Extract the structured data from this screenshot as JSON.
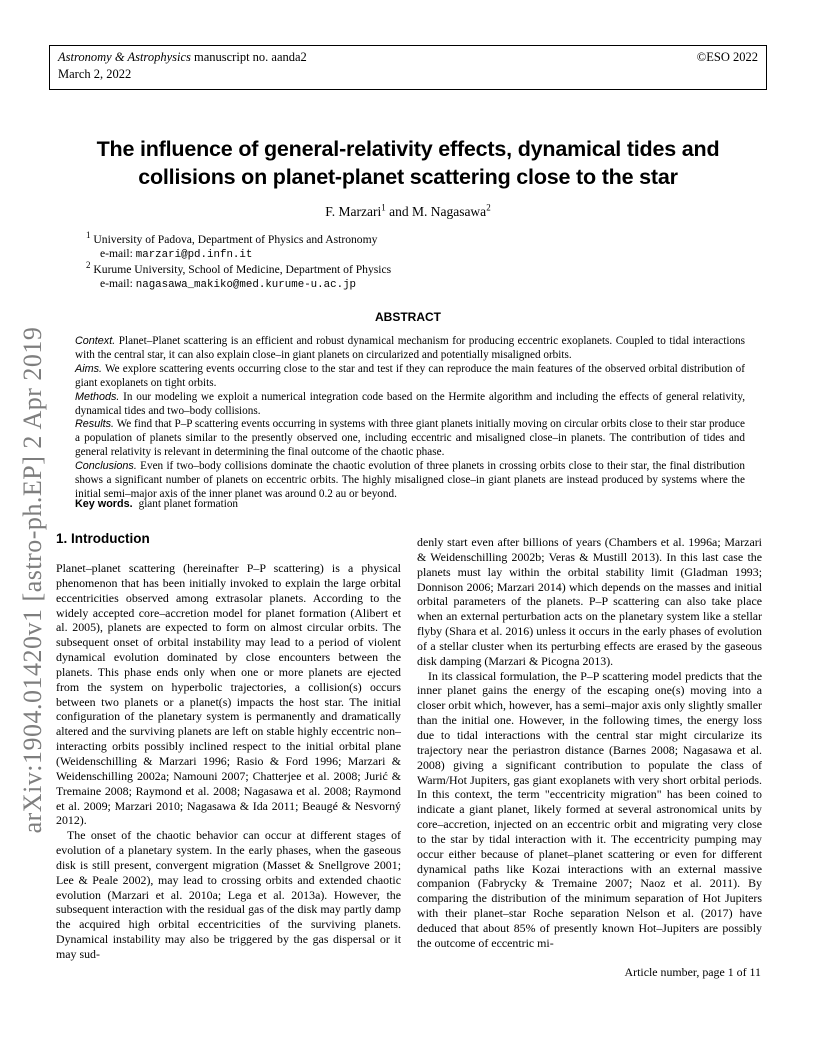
{
  "masthead": {
    "journal": "Astronomy & Astrophysics",
    "manuscript": " manuscript no. aanda2",
    "date": "March 2, 2022",
    "copyright": "©ESO 2022"
  },
  "arxiv_stamp": "arXiv:1904.01420v1  [astro-ph.EP]  2 Apr 2019",
  "title": "The influence of general-relativity effects, dynamical tides and collisions on planet-planet scattering close to the star",
  "authors": {
    "a1": "F. Marzari",
    "a1_sup": "1",
    "sep": " and ",
    "a2": "M. Nagasawa",
    "a2_sup": "2"
  },
  "affiliations": [
    {
      "num": "1",
      "inst": "University of Padova, Department of Physics and Astronomy",
      "email_label": "e-mail: ",
      "email": "marzari@pd.infn.it"
    },
    {
      "num": "2",
      "inst": "Kurume University, School of Medicine, Department of Physics",
      "email_label": "e-mail: ",
      "email": "nagasawa_makiko@med.kurume-u.ac.jp"
    }
  ],
  "abstract": {
    "heading": "ABSTRACT",
    "sections": [
      {
        "label": "Context.",
        "text": " Planet–Planet scattering is an efficient and robust dynamical mechanism for producing eccentric exoplanets. Coupled to tidal interactions with the central star, it can also explain close–in giant planets on circularized and potentially misaligned orbits."
      },
      {
        "label": "Aims.",
        "text": " We explore scattering events occurring close to the star and test if they can reproduce the main features of the observed orbital distribution of giant exoplanets on tight orbits."
      },
      {
        "label": "Methods.",
        "text": " In our modeling we exploit a numerical integration code based on the Hermite algorithm and including the effects of general relativity, dynamical tides and two–body collisions."
      },
      {
        "label": "Results.",
        "text": " We find that P–P scattering events occurring in systems with three giant planets initially moving on circular orbits close to their star produce a population of planets similar to the presently observed one, including eccentric and misaligned close–in planets. The contribution of tides and general relativity is relevant in determining the final outcome of the chaotic phase."
      },
      {
        "label": "Conclusions.",
        "text": " Even if two–body collisions dominate the chaotic evolution of three planets in crossing orbits close to their star, the final distribution shows a significant number of planets on eccentric orbits. The highly misaligned close–in giant planets are instead produced by systems where the initial semi–major axis of the inner planet was around 0.2 au or beyond."
      }
    ],
    "keywords_label": "Key words.",
    "keywords": "giant planet formation"
  },
  "introduction": {
    "heading": "1. Introduction",
    "left": [
      "Planet–planet scattering (hereinafter P–P scattering) is a physical phenomenon that has been initially invoked to explain the large orbital eccentricities observed among extrasolar planets. According to the widely accepted core–accretion model for planet formation (Alibert et al. 2005), planets are expected to form on almost circular orbits. The subsequent onset of orbital instability may lead to a period of violent dynamical evolution dominated by close encounters between the planets. This phase ends only when one or more planets are ejected from the system on hyperbolic trajectories, a collision(s) occurs between two planets or a planet(s) impacts the host star. The initial configuration of the planetary system is permanently and dramatically altered and the surviving planets are left on stable highly eccentric non–interacting orbits possibly inclined respect to the initial orbital plane (Weidenschilling & Marzari 1996; Rasio & Ford 1996; Marzari & Weidenschilling 2002a; Namouni 2007; Chatterjee et al. 2008; Jurić & Tremaine 2008; Raymond et al. 2008; Nagasawa et al. 2008; Raymond et al. 2009; Marzari 2010; Nagasawa & Ida 2011; Beaugé & Nesvorný 2012).",
      "The onset of the chaotic behavior can occur at different stages of evolution of a planetary system. In the early phases, when the gaseous disk is still present, convergent migration (Masset & Snellgrove 2001; Lee & Peale 2002), may lead to crossing orbits and extended chaotic evolution (Marzari et al. 2010a; Lega et al. 2013a). However, the subsequent interaction with the residual gas of the disk may partly damp the acquired high orbital eccentricities of the surviving planets. Dynamical instability may also be triggered by the gas dispersal or it may sud-"
    ],
    "right": [
      "denly start even after billions of years (Chambers et al. 1996a; Marzari & Weidenschilling 2002b; Veras & Mustill 2013). In this last case the planets must lay within the orbital stability limit (Gladman 1993; Donnison 2006; Marzari 2014) which depends on the masses and initial orbital parameters of the planets. P–P scattering can also take place when an external perturbation acts on the planetary system like a stellar flyby (Shara et al. 2016) unless it occurs in the early phases of evolution of a stellar cluster when its perturbing effects are erased by the gaseous disk damping (Marzari & Picogna 2013).",
      "In its classical formulation, the P–P scattering model predicts that the inner planet gains the energy of the escaping one(s) moving into a closer orbit which, however, has a semi–major axis only slightly smaller than the initial one. However, in the following times, the energy loss due to tidal interactions with the central star might circularize its trajectory near the periastron distance (Barnes 2008; Nagasawa et al. 2008) giving a significant contribution to populate the class of Warm/Hot Jupiters, gas giant exoplanets with very short orbital periods. In this context, the term \"eccentricity migration\" has been coined to indicate a giant planet, likely formed at several astronomical units by core–accretion, injected on an eccentric orbit and migrating very close to the star by tidal interaction with it. The eccentricity pumping may occur either because of planet–planet scattering or even for different dynamical paths like Kozai interactions with an external massive companion (Fabrycky & Tremaine 2007; Naoz et al. 2011). By comparing the distribution of the minimum separation of Hot Jupiters with their planet–star Roche separation Nelson et al. (2017) have deduced that about 85% of presently known Hot–Jupiters are possibly the outcome of eccentric mi-"
    ]
  },
  "page": {
    "footer": "Article number, page 1 of 11"
  }
}
